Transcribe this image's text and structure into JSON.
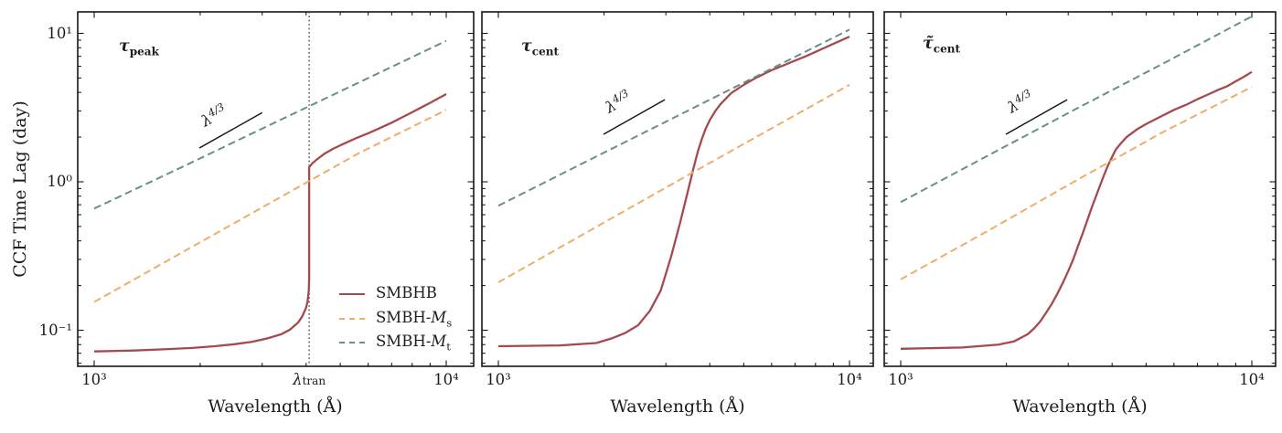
{
  "figure": {
    "ylabel": "CCF Time Lag (day)",
    "background": "#ffffff",
    "spine_color": "#161616",
    "text_color": "#1c1c1c"
  },
  "legend": {
    "items": [
      {
        "style": "solid",
        "color": "#a6494d",
        "prefix": "SMBHB",
        "math": "",
        "sub": ""
      },
      {
        "style": "dashed",
        "color": "#f0ac69",
        "prefix": "SMBH-",
        "math": "M",
        "sub": "s"
      },
      {
        "style": "dashed",
        "color": "#688e8d",
        "prefix": "SMBH-",
        "math": "M",
        "sub": "t"
      }
    ]
  },
  "chart_data": [
    {
      "type": "line",
      "title_symbol": "τ",
      "title_subscript": "peak",
      "xlabel": "Wavelength (Å)",
      "xscale": "log",
      "yscale": "log",
      "xlim": [
        897,
        11970
      ],
      "ylim": [
        0.057,
        13.9
      ],
      "xtick_labels": [
        "10³",
        "10⁴"
      ],
      "xtick_values": [
        1000,
        10000
      ],
      "ytick_labels": [
        "10¹",
        "10⁰",
        "10⁻¹"
      ],
      "ytick_values": [
        10,
        1,
        0.1
      ],
      "grid": false,
      "vline": {
        "lambda": 4080,
        "label_symbol": "λ",
        "label_sub": "tran",
        "color": "#4a4a4a",
        "style": "dotted"
      },
      "slope_marker": {
        "symbol": "λ",
        "exponent": "4/3",
        "lambda_range": [
          1990,
          3000
        ],
        "value_start": 1.69,
        "slope": 1.333
      },
      "series": [
        {
          "name": "SMBHB",
          "color": "#a6494d",
          "dash": "solid",
          "points": [
            [
              1000,
              0.072
            ],
            [
              1300,
              0.073
            ],
            [
              1600,
              0.0745
            ],
            [
              1900,
              0.076
            ],
            [
              2200,
              0.078
            ],
            [
              2500,
              0.0805
            ],
            [
              2800,
              0.0835
            ],
            [
              3100,
              0.088
            ],
            [
              3400,
              0.094
            ],
            [
              3600,
              0.101
            ],
            [
              3800,
              0.113
            ],
            [
              3900,
              0.124
            ],
            [
              4000,
              0.142
            ],
            [
              4040,
              0.158
            ],
            [
              4070,
              0.185
            ],
            [
              4080,
              0.22
            ],
            [
              4080,
              1.25
            ],
            [
              4150,
              1.32
            ],
            [
              4300,
              1.42
            ],
            [
              4500,
              1.54
            ],
            [
              4750,
              1.66
            ],
            [
              5000,
              1.76
            ],
            [
              5500,
              1.95
            ],
            [
              6000,
              2.12
            ],
            [
              6500,
              2.31
            ],
            [
              7000,
              2.5
            ],
            [
              7500,
              2.72
            ],
            [
              8000,
              2.94
            ],
            [
              8500,
              3.17
            ],
            [
              9000,
              3.4
            ],
            [
              9500,
              3.65
            ],
            [
              10000,
              3.9
            ]
          ]
        },
        {
          "name": "SMBH-Ms",
          "color": "#f0ac69",
          "dash": "dashed",
          "points": [
            [
              1000,
              0.155
            ],
            [
              1780,
              0.335
            ],
            [
              3160,
              0.72
            ],
            [
              5620,
              1.55
            ],
            [
              10000,
              3.05
            ]
          ]
        },
        {
          "name": "SMBH-Mt",
          "color": "#688e8d",
          "dash": "dashed",
          "points": [
            [
              1000,
              0.66
            ],
            [
              1780,
              1.26
            ],
            [
              3160,
              2.42
            ],
            [
              5620,
              4.64
            ],
            [
              10000,
              8.9
            ]
          ]
        }
      ]
    },
    {
      "type": "line",
      "title_symbol": "τ",
      "title_subscript": "cent",
      "xlabel": "Wavelength (Å)",
      "xscale": "log",
      "yscale": "log",
      "xlim": [
        897,
        11970
      ],
      "ylim": [
        0.057,
        13.9
      ],
      "xtick_labels": [
        "10³",
        "10⁴"
      ],
      "xtick_values": [
        1000,
        10000
      ],
      "ytick_labels": [],
      "ytick_values": [
        10,
        1,
        0.1
      ],
      "grid": false,
      "slope_marker": {
        "symbol": "λ",
        "exponent": "4/3",
        "lambda_range": [
          1993,
          2980
        ],
        "value_start": 2.09,
        "slope": 1.333
      },
      "series": [
        {
          "name": "SMBHB",
          "color": "#a6494d",
          "dash": "solid",
          "points": [
            [
              1000,
              0.078
            ],
            [
              1500,
              0.079
            ],
            [
              1900,
              0.082
            ],
            [
              2100,
              0.088
            ],
            [
              2300,
              0.096
            ],
            [
              2500,
              0.108
            ],
            [
              2700,
              0.135
            ],
            [
              2900,
              0.185
            ],
            [
              3000,
              0.24
            ],
            [
              3100,
              0.31
            ],
            [
              3200,
              0.41
            ],
            [
              3300,
              0.54
            ],
            [
              3400,
              0.72
            ],
            [
              3500,
              0.95
            ],
            [
              3600,
              1.25
            ],
            [
              3700,
              1.6
            ],
            [
              3800,
              1.95
            ],
            [
              3900,
              2.3
            ],
            [
              4000,
              2.6
            ],
            [
              4150,
              3.0
            ],
            [
              4300,
              3.35
            ],
            [
              4600,
              3.95
            ],
            [
              5000,
              4.5
            ],
            [
              5400,
              5.0
            ],
            [
              6000,
              5.65
            ],
            [
              6500,
              6.1
            ],
            [
              7000,
              6.55
            ],
            [
              7500,
              7.0
            ],
            [
              8000,
              7.5
            ],
            [
              8500,
              8.0
            ],
            [
              9000,
              8.5
            ],
            [
              9500,
              9.0
            ],
            [
              10000,
              9.5
            ]
          ]
        },
        {
          "name": "SMBH-Ms",
          "color": "#f0ac69",
          "dash": "dashed",
          "points": [
            [
              1000,
              0.21
            ],
            [
              1780,
              0.455
            ],
            [
              3160,
              0.98
            ],
            [
              5620,
              2.1
            ],
            [
              10000,
              4.5
            ]
          ]
        },
        {
          "name": "SMBH-Mt",
          "color": "#688e8d",
          "dash": "dashed",
          "points": [
            [
              1000,
              0.69
            ],
            [
              1780,
              1.37
            ],
            [
              3160,
              2.7
            ],
            [
              5620,
              5.35
            ],
            [
              10000,
              10.6
            ]
          ]
        }
      ]
    },
    {
      "type": "line",
      "title_symbol": "τ̃",
      "title_subscript": "cent",
      "xlabel": "Wavelength (Å)",
      "xscale": "log",
      "yscale": "log",
      "xlim": [
        897,
        11970
      ],
      "ylim": [
        0.057,
        13.9
      ],
      "xtick_labels": [
        "10³",
        "10⁴"
      ],
      "xtick_values": [
        1000,
        10000
      ],
      "ytick_labels": [],
      "ytick_values": [
        10,
        1,
        0.1
      ],
      "grid": false,
      "slope_marker": {
        "symbol": "λ",
        "exponent": "4/3",
        "lambda_range": [
          1993,
          2980
        ],
        "value_start": 2.09,
        "slope": 1.333
      },
      "series": [
        {
          "name": "SMBHB",
          "color": "#a6494d",
          "dash": "solid",
          "points": [
            [
              1000,
              0.075
            ],
            [
              1500,
              0.0765
            ],
            [
              1900,
              0.08
            ],
            [
              2100,
              0.084
            ],
            [
              2300,
              0.094
            ],
            [
              2400,
              0.103
            ],
            [
              2500,
              0.115
            ],
            [
              2600,
              0.132
            ],
            [
              2700,
              0.152
            ],
            [
              2800,
              0.178
            ],
            [
              2900,
              0.21
            ],
            [
              3000,
              0.25
            ],
            [
              3100,
              0.3
            ],
            [
              3200,
              0.37
            ],
            [
              3300,
              0.45
            ],
            [
              3400,
              0.55
            ],
            [
              3500,
              0.67
            ],
            [
              3600,
              0.8
            ],
            [
              3700,
              0.95
            ],
            [
              3800,
              1.12
            ],
            [
              3900,
              1.3
            ],
            [
              4000,
              1.47
            ],
            [
              4100,
              1.65
            ],
            [
              4250,
              1.83
            ],
            [
              4400,
              2.0
            ],
            [
              4700,
              2.25
            ],
            [
              5000,
              2.45
            ],
            [
              5500,
              2.75
            ],
            [
              6000,
              3.05
            ],
            [
              6500,
              3.3
            ],
            [
              7000,
              3.6
            ],
            [
              7500,
              3.87
            ],
            [
              8000,
              4.15
            ],
            [
              8500,
              4.4
            ],
            [
              9000,
              4.75
            ],
            [
              9500,
              5.1
            ],
            [
              10000,
              5.5
            ]
          ]
        },
        {
          "name": "SMBH-Ms",
          "color": "#f0ac69",
          "dash": "dashed",
          "points": [
            [
              1000,
              0.22
            ],
            [
              1780,
              0.47
            ],
            [
              3160,
              1.02
            ],
            [
              5620,
              2.18
            ],
            [
              10000,
              4.35
            ]
          ]
        },
        {
          "name": "SMBH-Mt",
          "color": "#688e8d",
          "dash": "dashed",
          "points": [
            [
              1000,
              0.73
            ],
            [
              1780,
              1.51
            ],
            [
              3160,
              3.1
            ],
            [
              5620,
              6.3
            ],
            [
              10000,
              13.0
            ]
          ]
        }
      ]
    }
  ]
}
